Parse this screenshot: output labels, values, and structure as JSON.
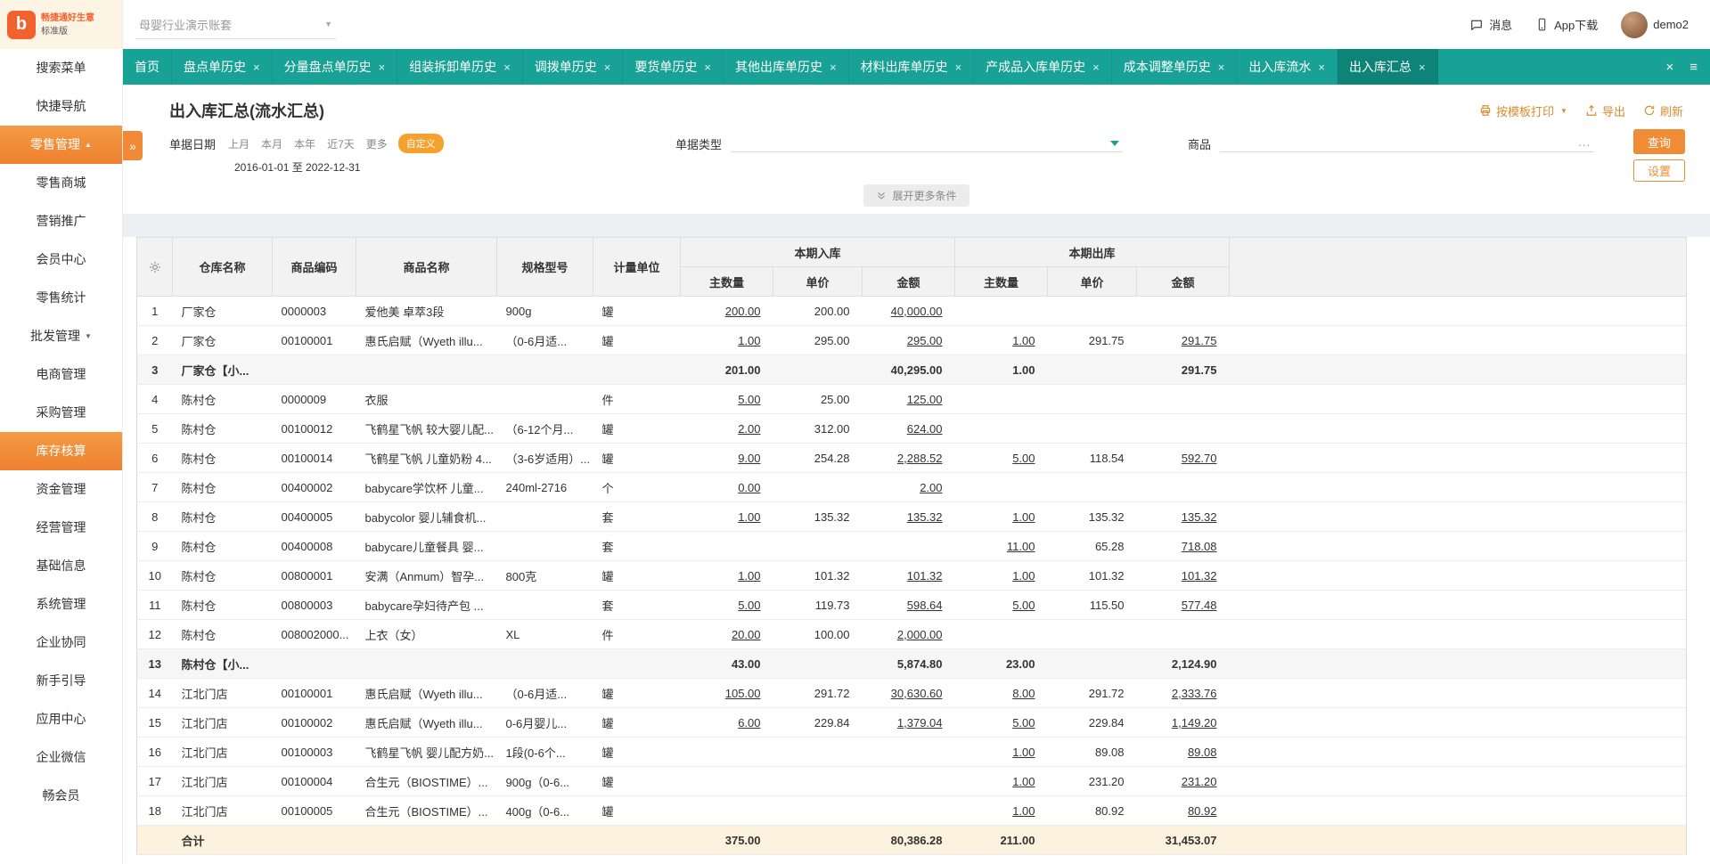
{
  "brand": {
    "logo_letter": "b",
    "name": "畅捷通好生意",
    "edition": "标准版"
  },
  "icons": {
    "collapse_handle": "»",
    "dropdown_caret": "▼",
    "tab_close": "×",
    "tabbar_close": "×",
    "tabbar_menu": "≡",
    "product_more": "...",
    "section_open_arrow": "▲",
    "section_closed_arrow": "▼"
  },
  "topbar": {
    "account": "母婴行业演示账套",
    "message_label": "消息",
    "app_download_label": "App下载",
    "username": "demo2"
  },
  "sidebar": {
    "items": [
      {
        "label": "搜索菜单",
        "type": "item"
      },
      {
        "label": "快捷导航",
        "type": "item"
      },
      {
        "label": "零售管理",
        "type": "section-open"
      },
      {
        "label": "零售商城",
        "type": "subitem"
      },
      {
        "label": "营销推广",
        "type": "subitem"
      },
      {
        "label": "会员中心",
        "type": "subitem"
      },
      {
        "label": "零售统计",
        "type": "subitem"
      },
      {
        "label": "批发管理",
        "type": "section-closed"
      },
      {
        "label": "电商管理",
        "type": "item"
      },
      {
        "label": "采购管理",
        "type": "item"
      },
      {
        "label": "库存核算",
        "type": "active"
      },
      {
        "label": "资金管理",
        "type": "item"
      },
      {
        "label": "经营管理",
        "type": "item"
      },
      {
        "label": "基础信息",
        "type": "item"
      },
      {
        "label": "系统管理",
        "type": "item"
      },
      {
        "label": "企业协同",
        "type": "item"
      },
      {
        "label": "新手引导",
        "type": "item"
      },
      {
        "label": "应用中心",
        "type": "item"
      },
      {
        "label": "企业微信",
        "type": "item"
      },
      {
        "label": "畅会员",
        "type": "item"
      }
    ]
  },
  "tabs": [
    {
      "label": "首页",
      "closable": false,
      "active": false
    },
    {
      "label": "盘点单历史",
      "closable": true,
      "active": false
    },
    {
      "label": "分量盘点单历史",
      "closable": true,
      "active": false
    },
    {
      "label": "组装拆卸单历史",
      "closable": true,
      "active": false
    },
    {
      "label": "调拨单历史",
      "closable": true,
      "active": false
    },
    {
      "label": "要货单历史",
      "closable": true,
      "active": false
    },
    {
      "label": "其他出库单历史",
      "closable": true,
      "active": false
    },
    {
      "label": "材料出库单历史",
      "closable": true,
      "active": false
    },
    {
      "label": "产成品入库单历史",
      "closable": true,
      "active": false
    },
    {
      "label": "成本调整单历史",
      "closable": true,
      "active": false
    },
    {
      "label": "出入库流水",
      "closable": true,
      "active": false
    },
    {
      "label": "出入库汇总",
      "closable": true,
      "active": true
    }
  ],
  "page": {
    "title": "出入库汇总(流水汇总)",
    "actions": {
      "print": "按模板打印",
      "export": "导出",
      "refresh": "刷新"
    },
    "filters": {
      "date_label": "单据日期",
      "date_quick": [
        "上月",
        "本月",
        "本年",
        "近7天",
        "更多"
      ],
      "date_custom": "自定义",
      "date_range": "2016-01-01 至 2022-12-31",
      "doc_type_label": "单据类型",
      "product_label": "商品",
      "search_button": "查询",
      "settings_button": "设置",
      "expand_more": "展开更多条件"
    }
  },
  "table": {
    "columns": {
      "warehouse": "仓库名称",
      "code": "商品编码",
      "name": "商品名称",
      "spec": "规格型号",
      "unit": "计量单位",
      "in_group": "本期入库",
      "out_group": "本期出库",
      "qty": "主数量",
      "price": "单价",
      "amount": "金额"
    },
    "rows": [
      {
        "type": "data",
        "no": "1",
        "warehouse": "厂家仓",
        "code": "0000003",
        "name": "爱他美 卓萃3段",
        "spec": "900g",
        "unit": "罐",
        "in_qty": "200.00",
        "in_price": "200.00",
        "in_amt": "40,000.00",
        "out_qty": "",
        "out_price": "",
        "out_amt": ""
      },
      {
        "type": "data",
        "no": "2",
        "warehouse": "厂家仓",
        "code": "00100001",
        "name": "惠氏启赋（Wyeth illu...",
        "spec": "（0-6月适...",
        "unit": "罐",
        "in_qty": "1.00",
        "in_price": "295.00",
        "in_amt": "295.00",
        "out_qty": "1.00",
        "out_price": "291.75",
        "out_amt": "291.75"
      },
      {
        "type": "subtotal",
        "no": "3",
        "warehouse": "厂家仓【小...",
        "code": "",
        "name": "",
        "spec": "",
        "unit": "",
        "in_qty": "201.00",
        "in_price": "",
        "in_amt": "40,295.00",
        "out_qty": "1.00",
        "out_price": "",
        "out_amt": "291.75"
      },
      {
        "type": "data",
        "no": "4",
        "warehouse": "陈村仓",
        "code": "0000009",
        "name": "衣服",
        "spec": "",
        "unit": "件",
        "in_qty": "5.00",
        "in_price": "25.00",
        "in_amt": "125.00",
        "out_qty": "",
        "out_price": "",
        "out_amt": ""
      },
      {
        "type": "data",
        "no": "5",
        "warehouse": "陈村仓",
        "code": "00100012",
        "name": "飞鹤星飞帆 较大婴儿配...",
        "spec": "（6-12个月...",
        "unit": "罐",
        "in_qty": "2.00",
        "in_price": "312.00",
        "in_amt": "624.00",
        "out_qty": "",
        "out_price": "",
        "out_amt": ""
      },
      {
        "type": "data",
        "no": "6",
        "warehouse": "陈村仓",
        "code": "00100014",
        "name": "飞鹤星飞帆 儿童奶粉 4...",
        "spec": "（3-6岁适用）...",
        "unit": "罐",
        "in_qty": "9.00",
        "in_price": "254.28",
        "in_amt": "2,288.52",
        "out_qty": "5.00",
        "out_price": "118.54",
        "out_amt": "592.70"
      },
      {
        "type": "data",
        "no": "7",
        "warehouse": "陈村仓",
        "code": "00400002",
        "name": "babycare学饮杯 儿童...",
        "spec": "240ml-2716",
        "unit": "个",
        "in_qty": "0.00",
        "in_price": "",
        "in_amt": "2.00",
        "out_qty": "",
        "out_price": "",
        "out_amt": ""
      },
      {
        "type": "data",
        "no": "8",
        "warehouse": "陈村仓",
        "code": "00400005",
        "name": "babycolor 婴儿辅食机...",
        "spec": "",
        "unit": "套",
        "in_qty": "1.00",
        "in_price": "135.32",
        "in_amt": "135.32",
        "out_qty": "1.00",
        "out_price": "135.32",
        "out_amt": "135.32"
      },
      {
        "type": "data",
        "no": "9",
        "warehouse": "陈村仓",
        "code": "00400008",
        "name": "babycare儿童餐具 婴...",
        "spec": "",
        "unit": "套",
        "in_qty": "",
        "in_price": "",
        "in_amt": "",
        "out_qty": "11.00",
        "out_price": "65.28",
        "out_amt": "718.08"
      },
      {
        "type": "data",
        "no": "10",
        "warehouse": "陈村仓",
        "code": "00800001",
        "name": "安满（Anmum）智孕...",
        "spec": "800克",
        "unit": "罐",
        "in_qty": "1.00",
        "in_price": "101.32",
        "in_amt": "101.32",
        "out_qty": "1.00",
        "out_price": "101.32",
        "out_amt": "101.32"
      },
      {
        "type": "data",
        "no": "11",
        "warehouse": "陈村仓",
        "code": "00800003",
        "name": "babycare孕妇待产包 ...",
        "spec": "",
        "unit": "套",
        "in_qty": "5.00",
        "in_price": "119.73",
        "in_amt": "598.64",
        "out_qty": "5.00",
        "out_price": "115.50",
        "out_amt": "577.48"
      },
      {
        "type": "data",
        "no": "12",
        "warehouse": "陈村仓",
        "code": "008002000...",
        "name": "上衣（女）",
        "spec": "XL",
        "unit": "件",
        "in_qty": "20.00",
        "in_price": "100.00",
        "in_amt": "2,000.00",
        "out_qty": "",
        "out_price": "",
        "out_amt": ""
      },
      {
        "type": "subtotal",
        "no": "13",
        "warehouse": "陈村仓【小...",
        "code": "",
        "name": "",
        "spec": "",
        "unit": "",
        "in_qty": "43.00",
        "in_price": "",
        "in_amt": "5,874.80",
        "out_qty": "23.00",
        "out_price": "",
        "out_amt": "2,124.90"
      },
      {
        "type": "data",
        "no": "14",
        "warehouse": "江北门店",
        "code": "00100001",
        "name": "惠氏启赋（Wyeth illu...",
        "spec": "（0-6月适...",
        "unit": "罐",
        "in_qty": "105.00",
        "in_price": "291.72",
        "in_amt": "30,630.60",
        "out_qty": "8.00",
        "out_price": "291.72",
        "out_amt": "2,333.76"
      },
      {
        "type": "data",
        "no": "15",
        "warehouse": "江北门店",
        "code": "00100002",
        "name": "惠氏启赋（Wyeth illu...",
        "spec": "0-6月婴儿...",
        "unit": "罐",
        "in_qty": "6.00",
        "in_price": "229.84",
        "in_amt": "1,379.04",
        "out_qty": "5.00",
        "out_price": "229.84",
        "out_amt": "1,149.20"
      },
      {
        "type": "data",
        "no": "16",
        "warehouse": "江北门店",
        "code": "00100003",
        "name": "飞鹤星飞帆 婴儿配方奶...",
        "spec": "1段(0-6个...",
        "unit": "罐",
        "in_qty": "",
        "in_price": "",
        "in_amt": "",
        "out_qty": "1.00",
        "out_price": "89.08",
        "out_amt": "89.08"
      },
      {
        "type": "data",
        "no": "17",
        "warehouse": "江北门店",
        "code": "00100004",
        "name": "合生元（BIOSTIME）...",
        "spec": "900g（0-6...",
        "unit": "罐",
        "in_qty": "",
        "in_price": "",
        "in_amt": "",
        "out_qty": "1.00",
        "out_price": "231.20",
        "out_amt": "231.20"
      },
      {
        "type": "data",
        "no": "18",
        "warehouse": "江北门店",
        "code": "00100005",
        "name": "合生元（BIOSTIME）...",
        "spec": "400g（0-6...",
        "unit": "罐",
        "in_qty": "",
        "in_price": "",
        "in_amt": "",
        "out_qty": "1.00",
        "out_price": "80.92",
        "out_amt": "80.92"
      },
      {
        "type": "total",
        "no": "",
        "warehouse": "合计",
        "code": "",
        "name": "",
        "spec": "",
        "unit": "",
        "in_qty": "375.00",
        "in_price": "",
        "in_amt": "80,386.28",
        "out_qty": "211.00",
        "out_price": "",
        "out_amt": "31,453.07"
      }
    ]
  }
}
